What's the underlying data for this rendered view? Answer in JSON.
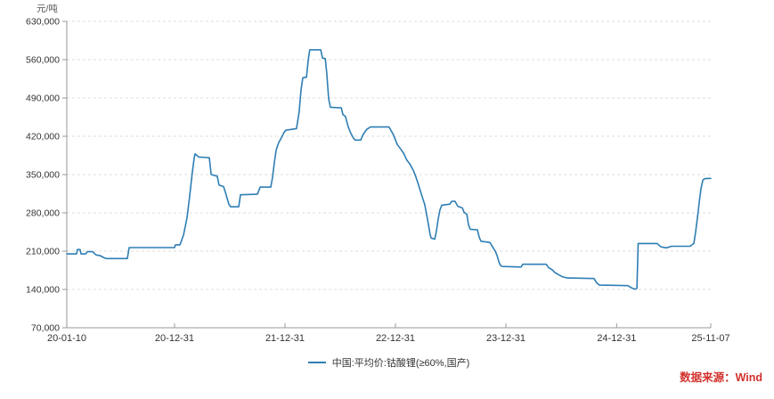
{
  "chart": {
    "unit_label": "元/吨",
    "source_label": "数据来源：Wind",
    "colors": {
      "line": "#2E7EB3",
      "grid": "#DCDCDC",
      "axis": "#999999",
      "tick_text": "#333333",
      "source_text": "#D2322D",
      "background": "#FFFFFF"
    }
  },
  "chart_data": {
    "type": "line",
    "title": "",
    "xlabel": "",
    "ylabel": "元/吨",
    "ylim": [
      70000,
      630000
    ],
    "y_ticks": [
      70000,
      140000,
      210000,
      280000,
      350000,
      420000,
      490000,
      560000,
      630000
    ],
    "x_range": [
      "2020-01-10",
      "2025-11-07"
    ],
    "x_tick_labels": [
      "20-01-10",
      "20-12-31",
      "21-12-31",
      "22-12-31",
      "23-12-31",
      "24-12-31",
      "25-11-07"
    ],
    "grid": "horizontal-dashed",
    "legend_position": "bottom-center",
    "series": [
      {
        "name": "中国:平均价:钴酸锂(≥60%,国产)",
        "color": "#2E7EB3",
        "points": [
          [
            "2020-01-10",
            205000
          ],
          [
            "2020-02-11",
            205000
          ],
          [
            "2020-02-14",
            213000
          ],
          [
            "2020-02-23",
            213000
          ],
          [
            "2020-02-26",
            205000
          ],
          [
            "2020-03-12",
            205000
          ],
          [
            "2020-03-18",
            209000
          ],
          [
            "2020-04-04",
            209000
          ],
          [
            "2020-04-16",
            203000
          ],
          [
            "2020-04-28",
            202000
          ],
          [
            "2020-05-16",
            197000
          ],
          [
            "2020-05-21",
            196500
          ],
          [
            "2020-07-28",
            196500
          ],
          [
            "2020-08-03",
            216500
          ],
          [
            "2020-12-31",
            216500
          ],
          [
            "2021-01-03",
            221500
          ],
          [
            "2021-01-18",
            221500
          ],
          [
            "2021-01-30",
            240000
          ],
          [
            "2021-02-10",
            270000
          ],
          [
            "2021-02-19",
            310000
          ],
          [
            "2021-02-28",
            355000
          ],
          [
            "2021-03-06",
            380000
          ],
          [
            "2021-03-09",
            388000
          ],
          [
            "2021-03-21",
            382000
          ],
          [
            "2021-04-25",
            381000
          ],
          [
            "2021-05-01",
            350000
          ],
          [
            "2021-05-21",
            347000
          ],
          [
            "2021-05-27",
            331000
          ],
          [
            "2021-06-11",
            328000
          ],
          [
            "2021-06-17",
            318000
          ],
          [
            "2021-06-29",
            295000
          ],
          [
            "2021-07-05",
            291000
          ],
          [
            "2021-07-31",
            291000
          ],
          [
            "2021-08-06",
            313000
          ],
          [
            "2021-10-01",
            314000
          ],
          [
            "2021-10-10",
            327000
          ],
          [
            "2021-11-14",
            327000
          ],
          [
            "2021-11-20",
            345000
          ],
          [
            "2021-11-26",
            373000
          ],
          [
            "2021-12-02",
            395000
          ],
          [
            "2021-12-10",
            408000
          ],
          [
            "2021-12-19",
            417000
          ],
          [
            "2021-12-28",
            427000
          ],
          [
            "2022-01-03",
            431000
          ],
          [
            "2022-02-07",
            434000
          ],
          [
            "2022-02-16",
            465000
          ],
          [
            "2022-02-22",
            505000
          ],
          [
            "2022-02-28",
            527000
          ],
          [
            "2022-03-12",
            528000
          ],
          [
            "2022-03-18",
            560000
          ],
          [
            "2022-03-23",
            578000
          ],
          [
            "2022-04-28",
            578000
          ],
          [
            "2022-05-04",
            563000
          ],
          [
            "2022-05-13",
            562000
          ],
          [
            "2022-05-18",
            535000
          ],
          [
            "2022-05-24",
            490000
          ],
          [
            "2022-05-30",
            473000
          ],
          [
            "2022-07-05",
            472000
          ],
          [
            "2022-07-10",
            460000
          ],
          [
            "2022-07-19",
            456000
          ],
          [
            "2022-07-28",
            437000
          ],
          [
            "2022-08-06",
            425000
          ],
          [
            "2022-08-15",
            416000
          ],
          [
            "2022-08-21",
            413000
          ],
          [
            "2022-09-07",
            413000
          ],
          [
            "2022-09-16",
            424000
          ],
          [
            "2022-09-28",
            433000
          ],
          [
            "2022-10-10",
            437000
          ],
          [
            "2022-12-10",
            437000
          ],
          [
            "2022-12-19",
            428000
          ],
          [
            "2022-12-25",
            422000
          ],
          [
            "2023-01-06",
            405000
          ],
          [
            "2023-01-18",
            396000
          ],
          [
            "2023-01-27",
            389000
          ],
          [
            "2023-02-07",
            376000
          ],
          [
            "2023-02-16",
            370000
          ],
          [
            "2023-02-28",
            358000
          ],
          [
            "2023-03-09",
            345000
          ],
          [
            "2023-03-18",
            330000
          ],
          [
            "2023-03-29",
            310000
          ],
          [
            "2023-04-07",
            295000
          ],
          [
            "2023-04-16",
            268000
          ],
          [
            "2023-04-25",
            240000
          ],
          [
            "2023-04-28",
            234000
          ],
          [
            "2023-05-10",
            232000
          ],
          [
            "2023-05-15",
            245000
          ],
          [
            "2023-05-21",
            268000
          ],
          [
            "2023-05-27",
            285000
          ],
          [
            "2023-06-02",
            294000
          ],
          [
            "2023-06-29",
            296000
          ],
          [
            "2023-07-05",
            301000
          ],
          [
            "2023-07-16",
            301000
          ],
          [
            "2023-07-25",
            292000
          ],
          [
            "2023-08-09",
            289000
          ],
          [
            "2023-08-15",
            281000
          ],
          [
            "2023-08-24",
            277000
          ],
          [
            "2023-08-29",
            259000
          ],
          [
            "2023-09-04",
            250000
          ],
          [
            "2023-09-28",
            249000
          ],
          [
            "2023-10-04",
            235000
          ],
          [
            "2023-10-10",
            228000
          ],
          [
            "2023-11-08",
            226000
          ],
          [
            "2023-11-17",
            218000
          ],
          [
            "2023-11-26",
            210000
          ],
          [
            "2023-12-02",
            202000
          ],
          [
            "2023-12-08",
            190000
          ],
          [
            "2023-12-13",
            184000
          ],
          [
            "2023-12-19",
            182000
          ],
          [
            "2024-02-19",
            181000
          ],
          [
            "2024-02-25",
            186000
          ],
          [
            "2024-05-12",
            186000
          ],
          [
            "2024-05-20",
            180000
          ],
          [
            "2024-06-01",
            176000
          ],
          [
            "2024-06-10",
            171000
          ],
          [
            "2024-06-22",
            167000
          ],
          [
            "2024-07-06",
            163000
          ],
          [
            "2024-07-21",
            161000
          ],
          [
            "2024-10-17",
            160000
          ],
          [
            "2024-10-26",
            152000
          ],
          [
            "2024-11-04",
            148000
          ],
          [
            "2025-02-06",
            147000
          ],
          [
            "2025-02-18",
            143000
          ],
          [
            "2025-03-02",
            140500
          ],
          [
            "2025-03-08",
            142000
          ],
          [
            "2025-03-12",
            224000
          ],
          [
            "2025-05-14",
            224000
          ],
          [
            "2025-05-26",
            218000
          ],
          [
            "2025-06-13",
            216000
          ],
          [
            "2025-06-30",
            219000
          ],
          [
            "2025-08-31",
            219000
          ],
          [
            "2025-09-06",
            221500
          ],
          [
            "2025-09-12",
            224000
          ],
          [
            "2025-09-18",
            245000
          ],
          [
            "2025-09-24",
            272000
          ],
          [
            "2025-09-30",
            300000
          ],
          [
            "2025-10-06",
            325000
          ],
          [
            "2025-10-12",
            340000
          ],
          [
            "2025-10-18",
            342500
          ],
          [
            "2025-11-07",
            343000
          ]
        ]
      }
    ]
  }
}
